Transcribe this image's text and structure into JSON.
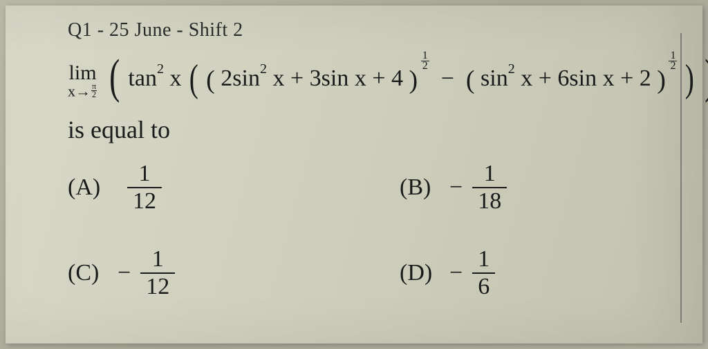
{
  "title": "Q1 - 25 June - Shift 2",
  "limit": {
    "top": "lim",
    "bottom_left": "x→",
    "bottom_num": "π",
    "bottom_den": "2"
  },
  "expr": {
    "tan": "tan",
    "sq": "2",
    "x": "x",
    "term1": {
      "a": "2",
      "sin": "sin",
      "p1": "2",
      "b": "+ 3",
      "c": "+ 4"
    },
    "pow": {
      "n": "1",
      "d": "2"
    },
    "minus": "−",
    "term2": {
      "sin": "sin",
      "p1": "2",
      "b": "+ 6",
      "c": "+ 2"
    }
  },
  "isEqual": "is equal to",
  "options": {
    "a": {
      "label": "(A)",
      "sign": "",
      "num": "1",
      "den": "12"
    },
    "b": {
      "label": "(B)",
      "sign": "−",
      "num": "1",
      "den": "18"
    },
    "c": {
      "label": "(C)",
      "sign": "−",
      "num": "1",
      "den": "12"
    },
    "d": {
      "label": "(D)",
      "sign": "−",
      "num": "1",
      "den": "6"
    }
  },
  "style": {
    "paper_bg_from": "#d8d8c8",
    "paper_bg_to": "#c2c2b0",
    "text_color": "#1a1a1a",
    "title_fontsize": 28,
    "formula_fontsize": 34,
    "option_fontsize": 34,
    "isequal_fontsize": 36
  }
}
